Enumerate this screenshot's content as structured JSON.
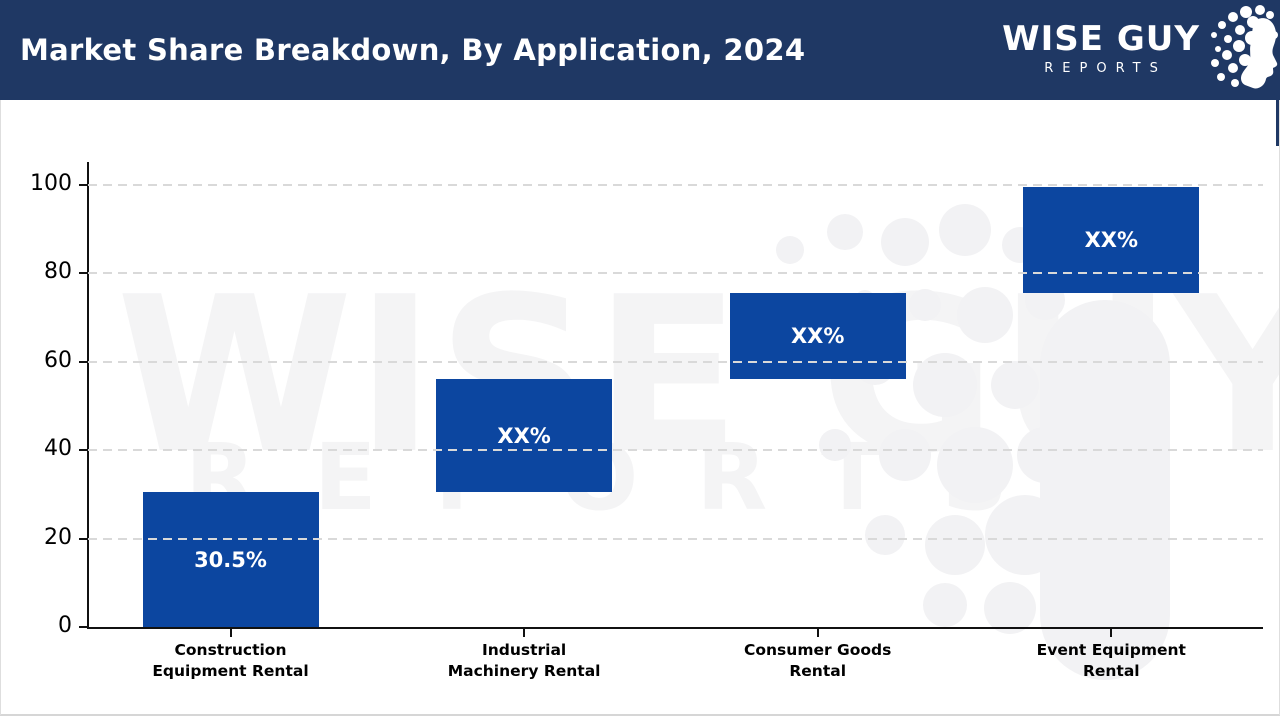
{
  "header": {
    "title": "Market Share Breakdown, By Application, 2024",
    "bg_color": "#1f3864",
    "logo": {
      "name": "WISE GUY",
      "tagline": "REPORTS"
    }
  },
  "watermark": {
    "name": "WISE GUY",
    "tagline": "REPORTS"
  },
  "chart_data": {
    "type": "bar",
    "subtype": "stacked-waterfall",
    "title": "Market Share Breakdown, By Application, 2024",
    "categories": [
      "Construction\nEquipment Rental",
      "Industrial\nMachinery Rental",
      "Consumer Goods\nRental",
      "Event Equipment\nRental"
    ],
    "bars": [
      {
        "name": "Construction Equipment Rental",
        "base": 0,
        "top": 30.5,
        "label": "30.5%"
      },
      {
        "name": "Industrial Machinery Rental",
        "base": 30.5,
        "top": 56,
        "label": "XX%"
      },
      {
        "name": "Consumer Goods Rental",
        "base": 56,
        "top": 75.5,
        "label": "XX%"
      },
      {
        "name": "Event Equipment Rental",
        "base": 75.5,
        "top": 99.5,
        "label": "XX%"
      }
    ],
    "xlabel": "",
    "ylabel": "",
    "y_ticks": [
      0,
      20,
      40,
      60,
      80,
      100
    ],
    "ylim": [
      0,
      105
    ],
    "grid": "dashed-horizontal",
    "legend": "none",
    "bar_color": "#0c46a0",
    "label_color": "#ffffff"
  }
}
